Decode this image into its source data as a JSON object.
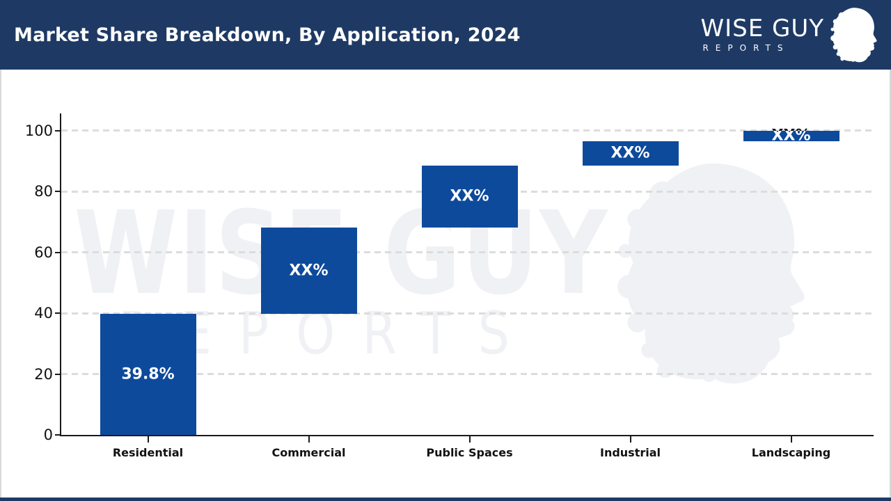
{
  "header": {
    "title": "Market Share Breakdown, By Application, 2024",
    "logo": {
      "wordmark": "WISE GUY",
      "subtext": "REPORTS"
    }
  },
  "watermark": {
    "wordmark": "WISE GUY",
    "subtext": "REPORTS"
  },
  "colors": {
    "header_bg": "#1e3a64",
    "bar_fill": "#0d4a9c",
    "grid_line": "#dcdcdc",
    "axis_line": "#1a1a1a",
    "watermark_fill": "#f0f1f4",
    "bar_label_light": "#ffffff",
    "bar_label_dark": "#111111",
    "tick_label": "#111111"
  },
  "chart_data": {
    "type": "bar",
    "subtype": "waterfall",
    "title": "Market Share Breakdown, By Application, 2024",
    "categories": [
      "Residential",
      "Commercial",
      "Public Spaces",
      "Industrial",
      "Landscaping"
    ],
    "segments": [
      {
        "category": "Residential",
        "start": 0,
        "end": 39.8,
        "label": "39.8%"
      },
      {
        "category": "Commercial",
        "start": 39.8,
        "end": 68.2,
        "label": "XX%"
      },
      {
        "category": "Public Spaces",
        "start": 68.2,
        "end": 88.5,
        "label": "XX%"
      },
      {
        "category": "Industrial",
        "start": 88.5,
        "end": 96.5,
        "label": "XX%"
      },
      {
        "category": "Landscaping",
        "start": 96.5,
        "end": 100,
        "label": "XX%"
      }
    ],
    "yticks": [
      0,
      20,
      40,
      60,
      80,
      100
    ],
    "ylim": [
      0,
      105
    ],
    "xlabel": "",
    "ylabel": "",
    "grid": "horizontal-dashed",
    "legend": null
  }
}
